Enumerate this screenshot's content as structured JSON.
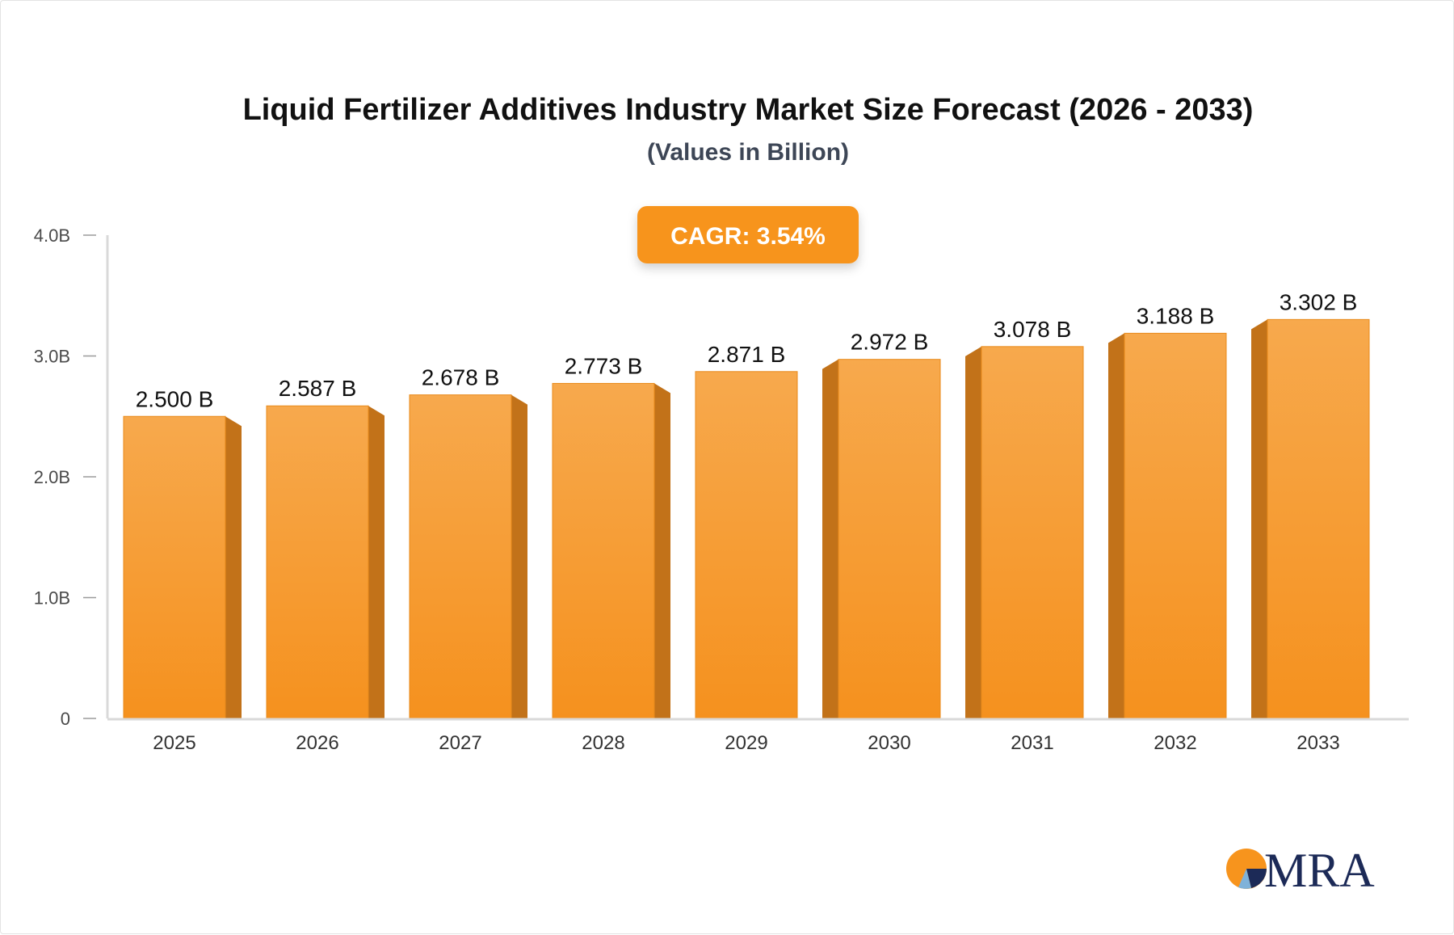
{
  "chart_data": {
    "type": "bar",
    "title": "Liquid Fertilizer Additives Industry Market Size Forecast (2026 - 2033)",
    "subtitle": "(Values in Billion)",
    "categories": [
      "2025",
      "2026",
      "2027",
      "2028",
      "2029",
      "2030",
      "2031",
      "2032",
      "2033"
    ],
    "values": [
      2.5,
      2.587,
      2.678,
      2.773,
      2.871,
      2.972,
      3.078,
      3.188,
      3.302
    ],
    "value_labels": [
      "2.500 B",
      "2.587 B",
      "2.678 B",
      "2.773 B",
      "2.871 B",
      "2.972 B",
      "3.078 B",
      "3.188 B",
      "3.302 B"
    ],
    "ylim": [
      0,
      4
    ],
    "yticks": [
      0,
      1,
      2,
      3,
      4
    ],
    "ytick_labels": [
      "0",
      "1.0B",
      "2.0B",
      "3.0B",
      "4.0B"
    ],
    "grid": false,
    "legend": "none",
    "bar_color": "#f7a13f",
    "bar_side_color": "#c27219",
    "annotation": "CAGR: 3.54%"
  },
  "badge": {
    "color": "#f7941d"
  },
  "logo": {
    "text": "MRA",
    "colors": [
      "#f7941d",
      "#1c2a57",
      "#7fb2d9"
    ]
  }
}
